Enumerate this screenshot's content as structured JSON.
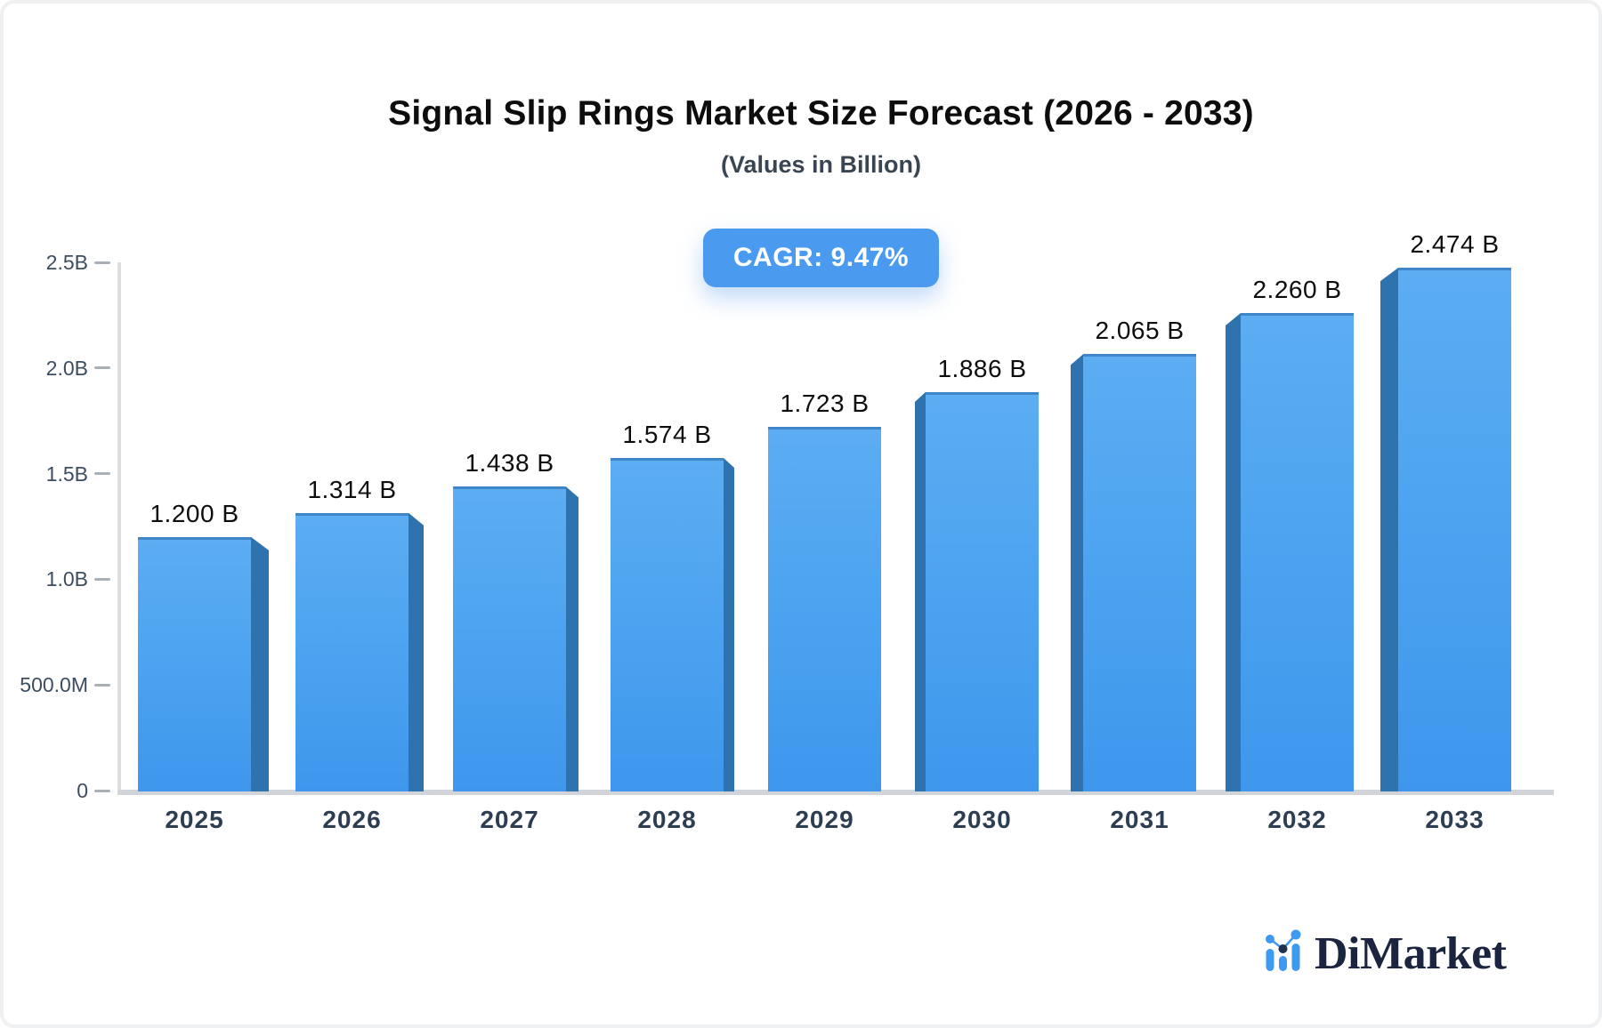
{
  "header": {
    "title": "Signal Slip Rings Market Size Forecast (2026 - 2033)",
    "subtitle": "(Values in Billion)",
    "cagr_label": "CAGR: 9.47%"
  },
  "logo": {
    "text": "DiMarket",
    "icon": "bar-chart-logo-icon"
  },
  "colors": {
    "bar_front_top": "#5cadf2",
    "bar_front_bottom": "#3e97ec",
    "bar_side": "#2e73ae",
    "bar_top_edge": "#3e86c8",
    "badge_background": "#4a9bef",
    "badge_text": "#ffffff",
    "axis_line": "#dcdee1",
    "baseline": "#d1d4d8",
    "tick_label": "#3d4d60",
    "year_label": "#2e3e52",
    "value_label": "#0d0d0d",
    "logo_navy": "#1b2540",
    "logo_blue": "#3d9af0"
  },
  "chart_data": {
    "type": "bar",
    "title": "Signal Slip Rings Market Size Forecast (2026 - 2033)",
    "subtitle": "(Values in Billion)",
    "cagr": "9.47%",
    "categories": [
      "2025",
      "2026",
      "2027",
      "2028",
      "2029",
      "2030",
      "2031",
      "2032",
      "2033"
    ],
    "values": [
      1.2,
      1.314,
      1.438,
      1.574,
      1.723,
      1.886,
      2.065,
      2.26,
      2.474
    ],
    "value_labels": [
      "1.200 B",
      "1.314 B",
      "1.438 B",
      "1.574 B",
      "1.723 B",
      "1.886 B",
      "2.065 B",
      "2.260 B",
      "2.474 B"
    ],
    "unit": "Billion USD",
    "xlabel": "",
    "ylabel": "",
    "ylim": [
      0,
      2.5
    ],
    "grid": false,
    "legend": false,
    "y_ticks": [
      {
        "value": 0,
        "label": "0"
      },
      {
        "value": 0.5,
        "label": "500.0M"
      },
      {
        "value": 1.0,
        "label": "1.0B"
      },
      {
        "value": 1.5,
        "label": "1.5B"
      },
      {
        "value": 2.0,
        "label": "2.0B"
      },
      {
        "value": 2.5,
        "label": "2.5B"
      }
    ]
  }
}
